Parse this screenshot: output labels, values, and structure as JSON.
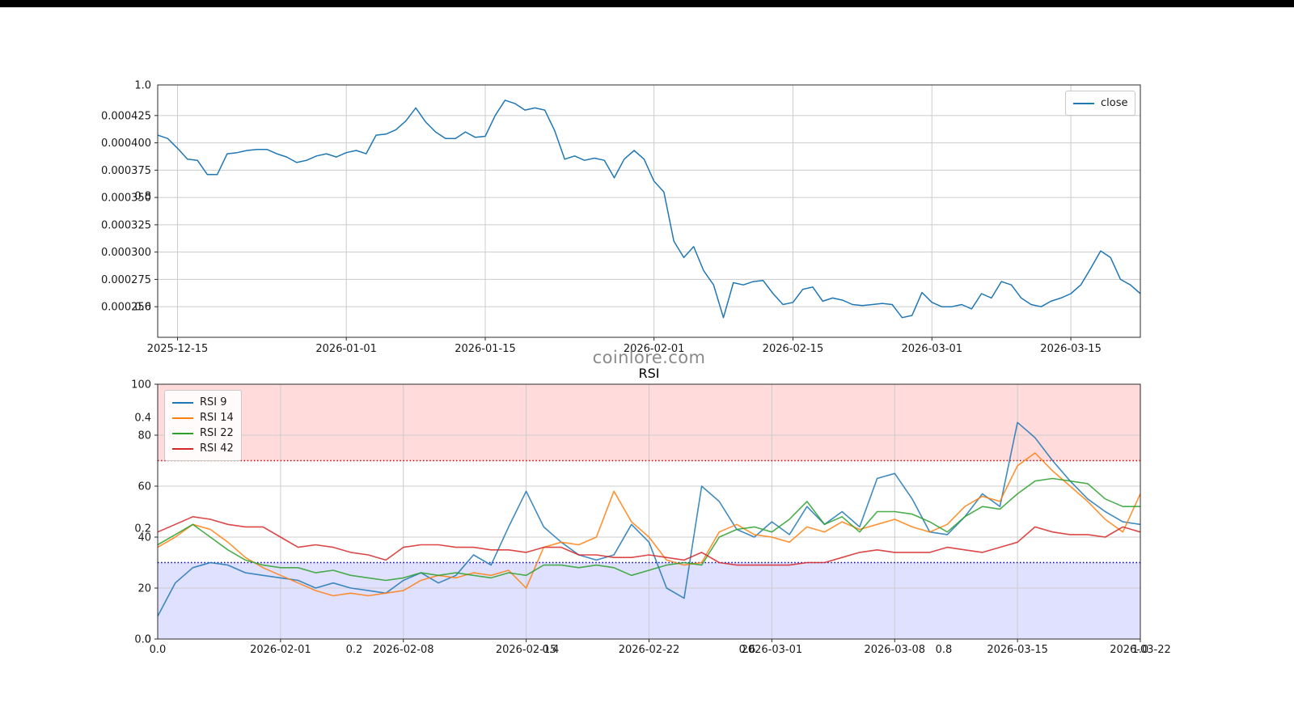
{
  "watermark": "coinlore.com",
  "colors": {
    "close_line": "#1f77b4",
    "rsi9": "#1f77b4",
    "rsi14": "#ff7f0e",
    "rsi22": "#2ca02c",
    "rsi42": "#d62728",
    "grid": "#cccccc",
    "overbought_band": "rgba(255,0,0,0.14)",
    "oversold_band": "rgba(0,0,255,0.12)",
    "overbought_line": "#d40000",
    "oversold_line": "#0000bb"
  },
  "overlay_axis": {
    "x_tick_labels": [
      "0.0",
      "0.2",
      "0.4",
      "0.6",
      "0.8",
      "1.0"
    ],
    "y_tick_labels": [
      "0.0",
      "0.2",
      "0.4",
      "0.6",
      "0.8",
      "1.0"
    ]
  },
  "chart_data": [
    {
      "type": "line",
      "title": "",
      "xlabel": "",
      "ylabel": "",
      "grid": true,
      "legend_position": "upper right",
      "x_start_date": "2025-12-13",
      "x_frequency": "daily",
      "x_tick_indices": [
        2,
        19,
        33,
        50,
        64,
        78,
        92
      ],
      "x_tick_labels": [
        "2025-12-15",
        "2026-01-01",
        "2026-01-15",
        "2026-02-01",
        "2026-02-15",
        "2026-03-01",
        "2026-03-15"
      ],
      "y_ticks": [
        0.00025,
        0.000275,
        0.0003,
        0.000325,
        0.00035,
        0.000375,
        0.0004,
        0.000425
      ],
      "y_tick_labels": [
        "0.000250",
        "0.000275",
        "0.000300",
        "0.000325",
        "0.000350",
        "0.000375",
        "0.000400",
        "0.000425"
      ],
      "ylim": [
        0.000222,
        0.000453
      ],
      "series": [
        {
          "name": "close",
          "color": "#1f77b4",
          "values": [
            0.000407,
            0.000404,
            0.000395,
            0.000385,
            0.000384,
            0.000371,
            0.000371,
            0.00039,
            0.000391,
            0.000393,
            0.000394,
            0.000394,
            0.00039,
            0.000387,
            0.000382,
            0.000384,
            0.000388,
            0.00039,
            0.000387,
            0.000391,
            0.000393,
            0.00039,
            0.000407,
            0.000408,
            0.000412,
            0.00042,
            0.000432,
            0.000419,
            0.00041,
            0.000404,
            0.000404,
            0.00041,
            0.000405,
            0.000406,
            0.000425,
            0.000439,
            0.000436,
            0.00043,
            0.000432,
            0.00043,
            0.000411,
            0.000385,
            0.000388,
            0.000384,
            0.000386,
            0.000384,
            0.000368,
            0.000385,
            0.000393,
            0.000385,
            0.000365,
            0.000355,
            0.00031,
            0.000295,
            0.000305,
            0.000283,
            0.00027,
            0.00024,
            0.000272,
            0.00027,
            0.000273,
            0.000274,
            0.000262,
            0.000252,
            0.000254,
            0.000266,
            0.000268,
            0.000255,
            0.000258,
            0.000256,
            0.000252,
            0.000251,
            0.000252,
            0.000253,
            0.000252,
            0.00024,
            0.000242,
            0.000263,
            0.000254,
            0.00025,
            0.00025,
            0.000252,
            0.000248,
            0.000262,
            0.000258,
            0.000273,
            0.00027,
            0.000258,
            0.000252,
            0.00025,
            0.000255,
            0.000258,
            0.000262,
            0.00027,
            0.000285,
            0.000301,
            0.000295,
            0.000275,
            0.00027,
            0.000262
          ]
        }
      ]
    },
    {
      "type": "line",
      "title": "RSI",
      "xlabel": "",
      "ylabel": "",
      "grid": true,
      "legend_position": "upper left",
      "x_start_date": "2026-01-25",
      "x_frequency": "daily",
      "x_tick_indices": [
        7,
        14,
        21,
        28,
        35,
        42,
        49,
        56
      ],
      "x_tick_labels": [
        "2026-02-01",
        "2026-02-08",
        "2026-02-15",
        "2026-02-22",
        "2026-03-01",
        "2026-03-08",
        "2026-03-15",
        "2026-03-22"
      ],
      "y_ticks": [
        0,
        20,
        40,
        60,
        80,
        100
      ],
      "y_tick_labels": [
        "0",
        "20",
        "40",
        "60",
        "80",
        "100"
      ],
      "ylim": [
        0,
        100
      ],
      "bands": [
        {
          "from": 70,
          "to": 100,
          "color": "rgba(255,0,0,0.14)"
        },
        {
          "from": 0,
          "to": 30,
          "color": "rgba(0,0,255,0.12)"
        }
      ],
      "hlines": [
        {
          "y": 70,
          "color": "#d40000",
          "style": "dotted"
        },
        {
          "y": 30,
          "color": "#0000bb",
          "style": "dotted"
        }
      ],
      "series": [
        {
          "name": "RSI 9",
          "color": "#1f77b4",
          "values": [
            9,
            22,
            28,
            30,
            29,
            26,
            25,
            24,
            23,
            20,
            22,
            20,
            19,
            18,
            23,
            26,
            22,
            25,
            33,
            29,
            44,
            58,
            44,
            38,
            33,
            31,
            33,
            45,
            38,
            20,
            16,
            60,
            54,
            43,
            40,
            46,
            41,
            52,
            45,
            50,
            44,
            63,
            65,
            55,
            42,
            41,
            48,
            57,
            52,
            85,
            79,
            70,
            62,
            55,
            50,
            46,
            45
          ]
        },
        {
          "name": "RSI 14",
          "color": "#ff7f0e",
          "values": [
            36,
            40,
            45,
            43,
            38,
            32,
            28,
            25,
            22,
            19,
            17,
            18,
            17,
            18,
            19,
            23,
            25,
            24,
            26,
            25,
            27,
            20,
            36,
            38,
            37,
            40,
            58,
            46,
            40,
            31,
            29,
            30,
            42,
            45,
            41,
            40,
            38,
            44,
            42,
            46,
            43,
            45,
            47,
            44,
            42,
            45,
            52,
            56,
            54,
            68,
            73,
            66,
            60,
            54,
            47,
            42,
            57
          ]
        },
        {
          "name": "RSI 22",
          "color": "#2ca02c",
          "values": [
            37,
            41,
            45,
            40,
            35,
            31,
            29,
            28,
            28,
            26,
            27,
            25,
            24,
            23,
            24,
            26,
            25,
            26,
            25,
            24,
            26,
            25,
            29,
            29,
            28,
            29,
            28,
            25,
            27,
            29,
            30,
            29,
            40,
            43,
            44,
            42,
            47,
            54,
            45,
            48,
            42,
            50,
            50,
            49,
            46,
            42,
            48,
            52,
            51,
            57,
            62,
            63,
            62,
            61,
            55,
            52,
            52
          ]
        },
        {
          "name": "RSI 42",
          "color": "#d62728",
          "values": [
            42,
            45,
            48,
            47,
            45,
            44,
            44,
            40,
            36,
            37,
            36,
            34,
            33,
            31,
            36,
            37,
            37,
            36,
            36,
            35,
            35,
            34,
            36,
            36,
            33,
            33,
            32,
            32,
            33,
            32,
            31,
            34,
            30,
            29,
            29,
            29,
            29,
            30,
            30,
            32,
            34,
            35,
            34,
            34,
            34,
            36,
            35,
            34,
            36,
            38,
            44,
            42,
            41,
            41,
            40,
            44,
            42
          ]
        }
      ]
    }
  ]
}
